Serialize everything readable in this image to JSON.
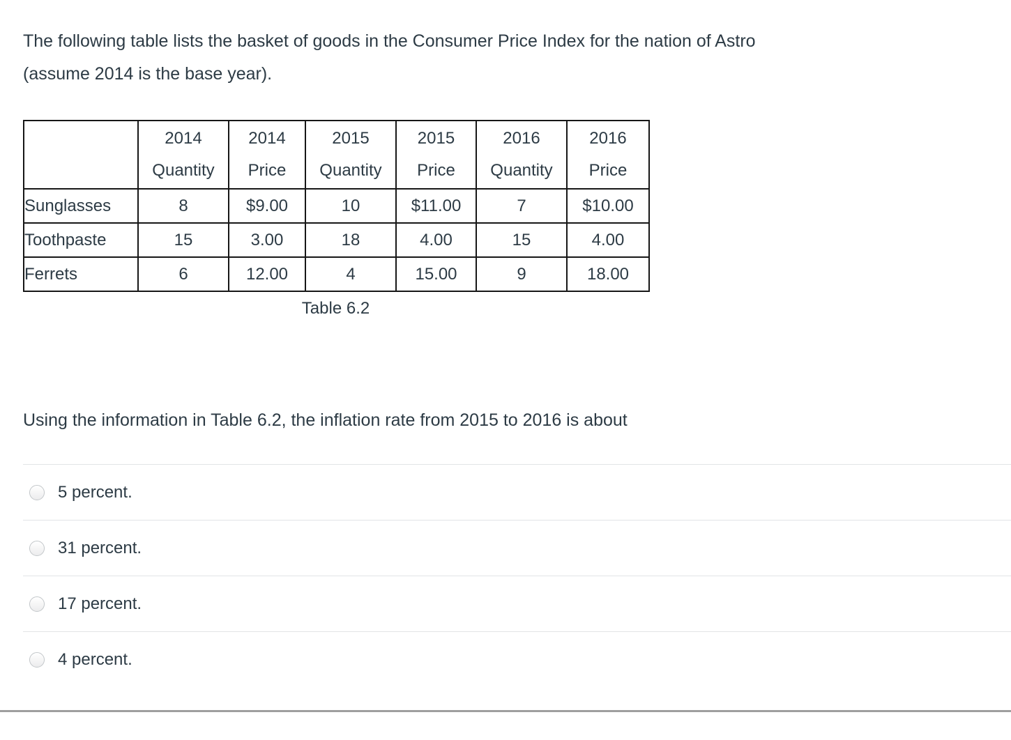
{
  "intro": {
    "lines": [
      "The following table lists the basket of goods in the Consumer Price Index for the nation of Astro",
      "(assume 2014 is the base year)."
    ]
  },
  "table": {
    "caption": "Table 6.2",
    "col_headers": [
      {
        "year": "2014",
        "metric": "Quantity"
      },
      {
        "year": "2014",
        "metric": "Price"
      },
      {
        "year": "2015",
        "metric": "Quantity"
      },
      {
        "year": "2015",
        "metric": "Price"
      },
      {
        "year": "2016",
        "metric": "Quantity"
      },
      {
        "year": "2016",
        "metric": "Price"
      }
    ],
    "rows": [
      {
        "label": "Sunglasses",
        "values": [
          "8",
          "$9.00",
          "10",
          "$11.00",
          "7",
          "$10.00"
        ]
      },
      {
        "label": "Toothpaste",
        "values": [
          "15",
          "3.00",
          "18",
          "4.00",
          "15",
          "4.00"
        ]
      },
      {
        "label": "Ferrets",
        "values": [
          "6",
          "12.00",
          "4",
          "15.00",
          "9",
          "18.00"
        ]
      }
    ]
  },
  "question": {
    "text": "Using the information in Table 6.2, the inflation rate from 2015 to 2016 is about"
  },
  "options": [
    {
      "label": "5 percent."
    },
    {
      "label": "31 percent."
    },
    {
      "label": "17 percent."
    },
    {
      "label": "4 percent."
    }
  ],
  "colors": {
    "text": "#2d3b45",
    "table_border": "#161616",
    "divider": "#e2e4e6",
    "bottom_bar": "#9f9f9f",
    "radio_border": "#c2c6c9"
  }
}
